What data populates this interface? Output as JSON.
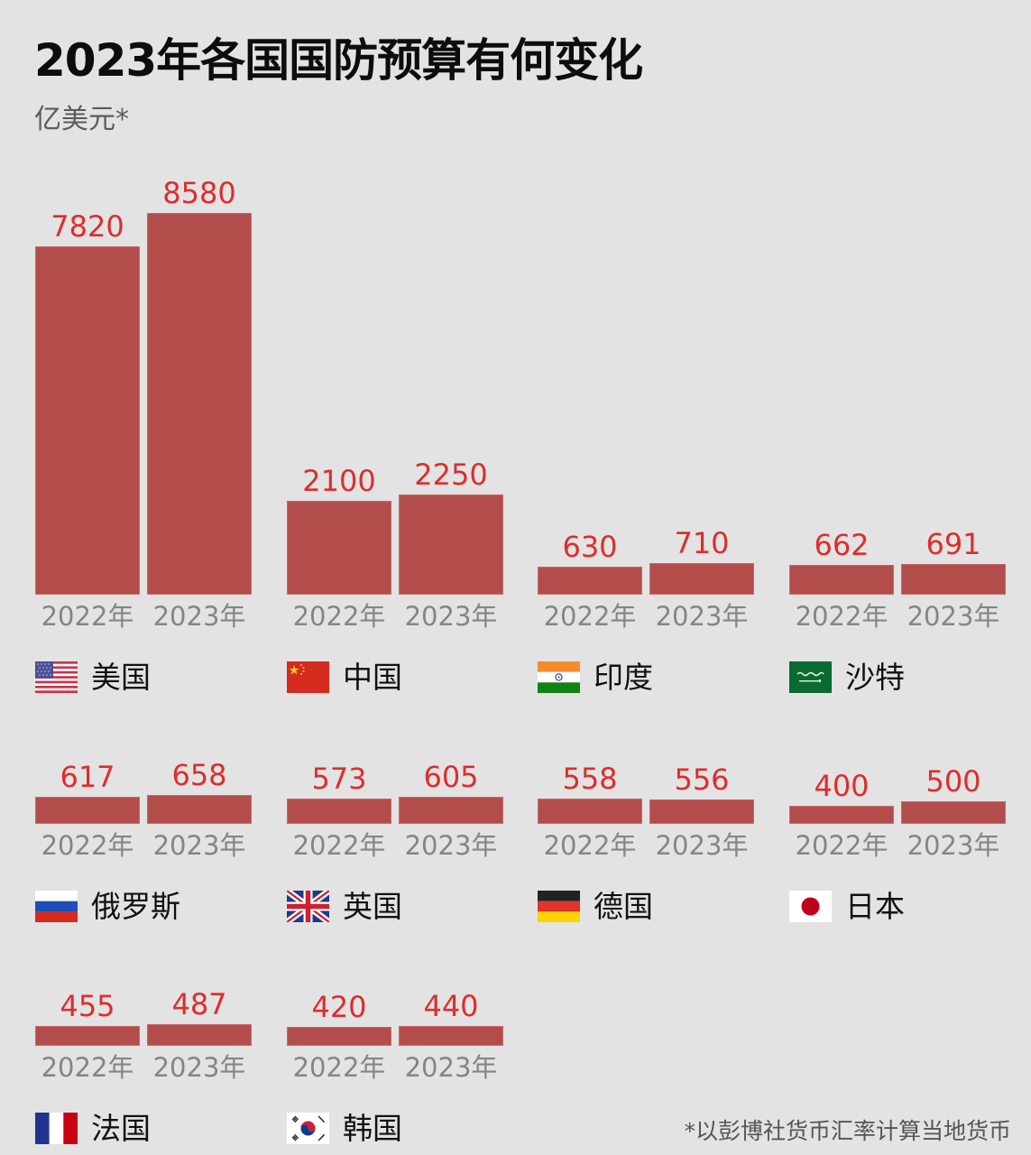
{
  "title": "2023年各国国防预算有何变化",
  "subtitle": "亿美元*",
  "footnote": "*以彭博社货币汇率计算当地货币",
  "year_labels": [
    "2022年",
    "2023年"
  ],
  "colors": {
    "bar": "#b34d4c",
    "value_label": "#dd2d2d",
    "year_label": "#858585",
    "background": "#e3e3e3"
  },
  "countries": [
    {
      "name": "美国",
      "flag": "us-flag-icon",
      "v2022": "7820",
      "v2023": "8580"
    },
    {
      "name": "中国",
      "flag": "china-flag-icon",
      "v2022": "2100",
      "v2023": "2250"
    },
    {
      "name": "印度",
      "flag": "india-flag-icon",
      "v2022": "630",
      "v2023": "710"
    },
    {
      "name": "沙特",
      "flag": "saudi-flag-icon",
      "v2022": "662",
      "v2023": "691"
    },
    {
      "name": "俄罗斯",
      "flag": "russia-flag-icon",
      "v2022": "617",
      "v2023": "658"
    },
    {
      "name": "英国",
      "flag": "uk-flag-icon",
      "v2022": "573",
      "v2023": "605"
    },
    {
      "name": "德国",
      "flag": "germany-flag-icon",
      "v2022": "558",
      "v2023": "556"
    },
    {
      "name": "日本",
      "flag": "japan-flag-icon",
      "v2022": "400",
      "v2023": "500"
    },
    {
      "name": "法国",
      "flag": "france-flag-icon",
      "v2022": "455",
      "v2023": "487"
    },
    {
      "name": "韩国",
      "flag": "korea-flag-icon",
      "v2022": "420",
      "v2023": "440"
    }
  ],
  "chart_data": {
    "type": "bar",
    "title": "2023年各国国防预算有何变化",
    "subtitle": "亿美元*",
    "ylabel": "亿美元",
    "categories": [
      "美国",
      "中国",
      "印度",
      "沙特",
      "俄罗斯",
      "英国",
      "德国",
      "日本",
      "法国",
      "韩国"
    ],
    "series": [
      {
        "name": "2022年",
        "values": [
          7820,
          2100,
          630,
          662,
          617,
          573,
          558,
          400,
          455,
          420
        ]
      },
      {
        "name": "2023年",
        "values": [
          8580,
          2250,
          710,
          691,
          658,
          605,
          556,
          500,
          487,
          440
        ]
      }
    ],
    "layout": "small multiples, 4 columns x 3 rows, grouped bars per country, value labels above bars, no axes, no gridlines",
    "annotations": [
      "*以彭博社货币汇率计算当地货币"
    ]
  }
}
